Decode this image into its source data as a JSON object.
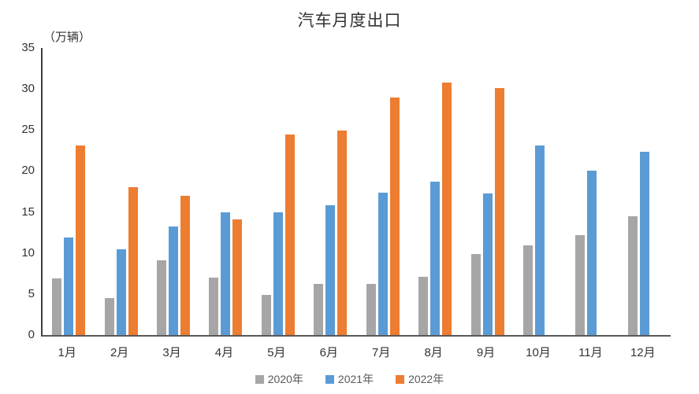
{
  "chart_data": {
    "type": "bar",
    "title": "汽车月度出口",
    "unit_label": "（万辆）",
    "categories": [
      "1月",
      "2月",
      "3月",
      "4月",
      "5月",
      "6月",
      "7月",
      "8月",
      "9月",
      "10月",
      "11月",
      "12月"
    ],
    "series": [
      {
        "name": "2020年",
        "color": "#A6A6A6",
        "values": [
          6.9,
          4.5,
          9.1,
          7.0,
          4.9,
          6.2,
          6.2,
          7.1,
          9.9,
          10.9,
          12.2,
          14.5
        ]
      },
      {
        "name": "2021年",
        "color": "#5B9BD5",
        "values": [
          11.9,
          10.5,
          13.2,
          15.0,
          15.0,
          15.8,
          17.4,
          18.7,
          17.3,
          23.1,
          20.0,
          22.3
        ]
      },
      {
        "name": "2022年",
        "color": "#ED7D31",
        "values": [
          23.1,
          18.0,
          17.0,
          14.1,
          24.5,
          24.9,
          29.0,
          30.8,
          30.1,
          null,
          null,
          null
        ]
      }
    ],
    "xlabel": "",
    "ylabel": "",
    "ylim": [
      0,
      35
    ],
    "yticks": [
      0,
      5,
      10,
      15,
      20,
      25,
      30,
      35
    ],
    "grid": false,
    "legend_position": "bottom"
  }
}
